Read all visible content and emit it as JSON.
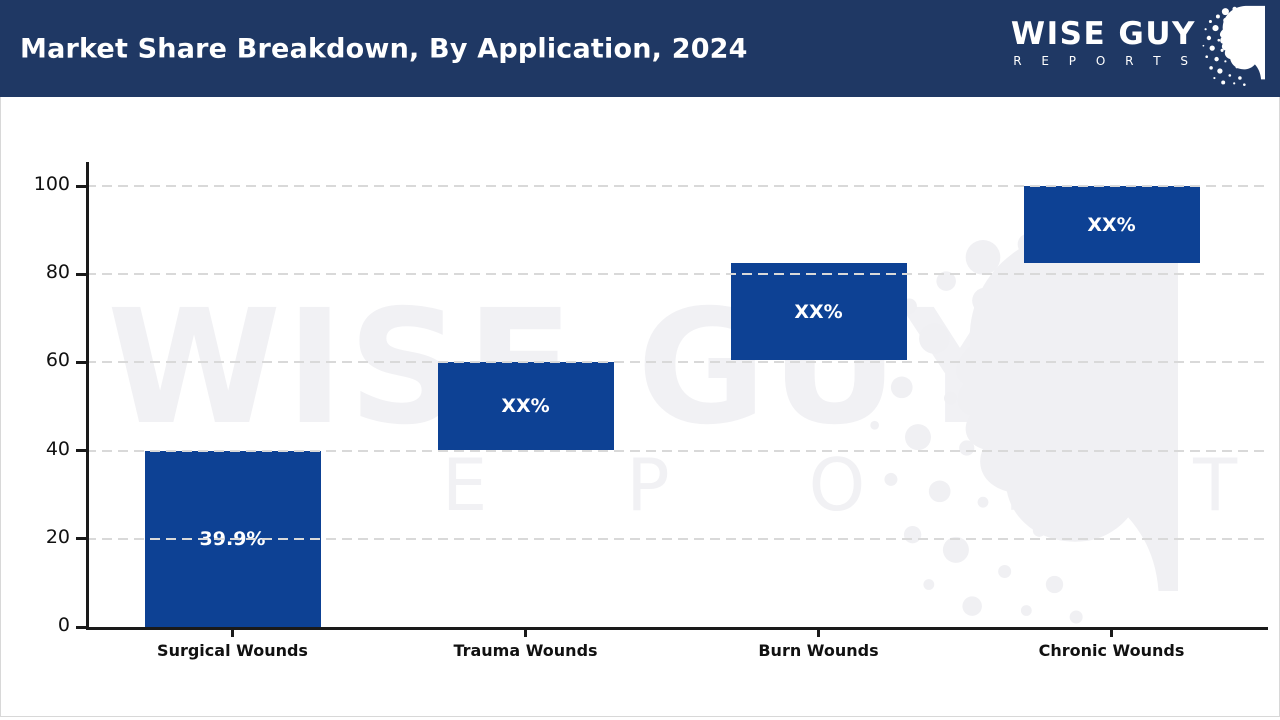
{
  "header": {
    "title": "Market Share Breakdown, By Application, 2024",
    "logo": {
      "line1": "WISE GUY",
      "line2": "R E P O R T S"
    }
  },
  "watermark": {
    "line1": "WISE GUY",
    "line2": "R E P O R T S"
  },
  "colors": {
    "header_bg": "#1f3864",
    "bar": "#0d4194",
    "gridline": "#d9d9d9",
    "axis": "#1a1a1a",
    "watermark": "#f1f1f4",
    "bar_label": "#ffffff"
  },
  "chart_data": {
    "type": "bar",
    "subtype": "floating-waterfall",
    "title": "Market Share Breakdown, By Application, 2024",
    "categories": [
      "Surgical Wounds",
      "Trauma Wounds",
      "Burn Wounds",
      "Chronic Wounds"
    ],
    "segments": [
      {
        "category": "Surgical Wounds",
        "start": 0,
        "end": 39.9,
        "label": "39.9%"
      },
      {
        "category": "Trauma Wounds",
        "start": 40.2,
        "end": 60.2,
        "label": "XX%"
      },
      {
        "category": "Burn Wounds",
        "start": 60.5,
        "end": 82.5,
        "label": "XX%"
      },
      {
        "category": "Chronic Wounds",
        "start": 82.5,
        "end": 100,
        "label": "XX%"
      }
    ],
    "yticks": [
      0,
      20,
      40,
      60,
      80,
      100
    ],
    "ylim": [
      0,
      100
    ],
    "xlabel": "",
    "ylabel": "",
    "grid": "horizontal-dashed",
    "legend": "none"
  }
}
